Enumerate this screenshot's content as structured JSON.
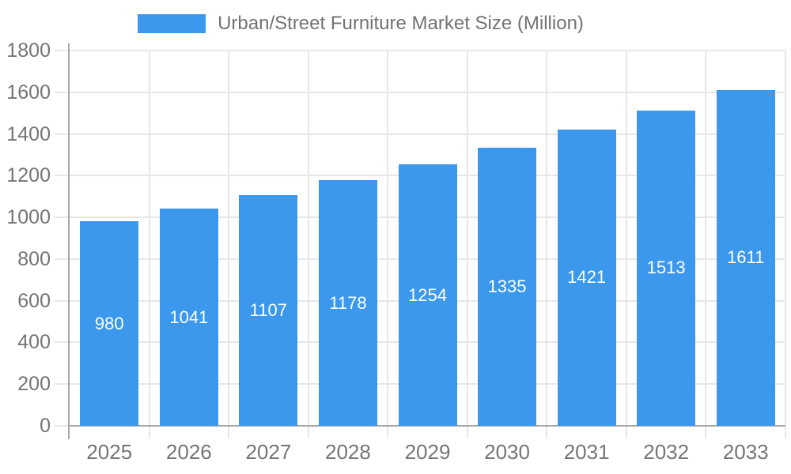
{
  "chart_data": {
    "type": "bar",
    "legend": {
      "position": "top",
      "label": "Urban/Street Furniture Market Size (Million)"
    },
    "categories": [
      "2025",
      "2026",
      "2027",
      "2028",
      "2029",
      "2030",
      "2031",
      "2032",
      "2033"
    ],
    "series": [
      {
        "name": "Urban/Street Furniture Market Size (Million)",
        "values": [
          980,
          1041,
          1107,
          1178,
          1254,
          1335,
          1421,
          1513,
          1611
        ]
      }
    ],
    "bar_value_labels": [
      "980",
      "1041",
      "1107",
      "1178",
      "1254",
      "1335",
      "1421",
      "1513",
      "1611"
    ],
    "xlabel": "",
    "ylabel": "",
    "ylim": [
      0,
      1800
    ],
    "y_tick_labels": [
      "0",
      "200",
      "400",
      "600",
      "800",
      "1000",
      "1200",
      "1400",
      "1600",
      "1800"
    ],
    "grid": true,
    "colors": {
      "bar": "#3B98EC",
      "bar_label": "#FFFFFF",
      "grid": "#E7E7E7",
      "axis": "#A7A7A7",
      "tick_label": "#757575",
      "legend_text": "#737373"
    }
  }
}
